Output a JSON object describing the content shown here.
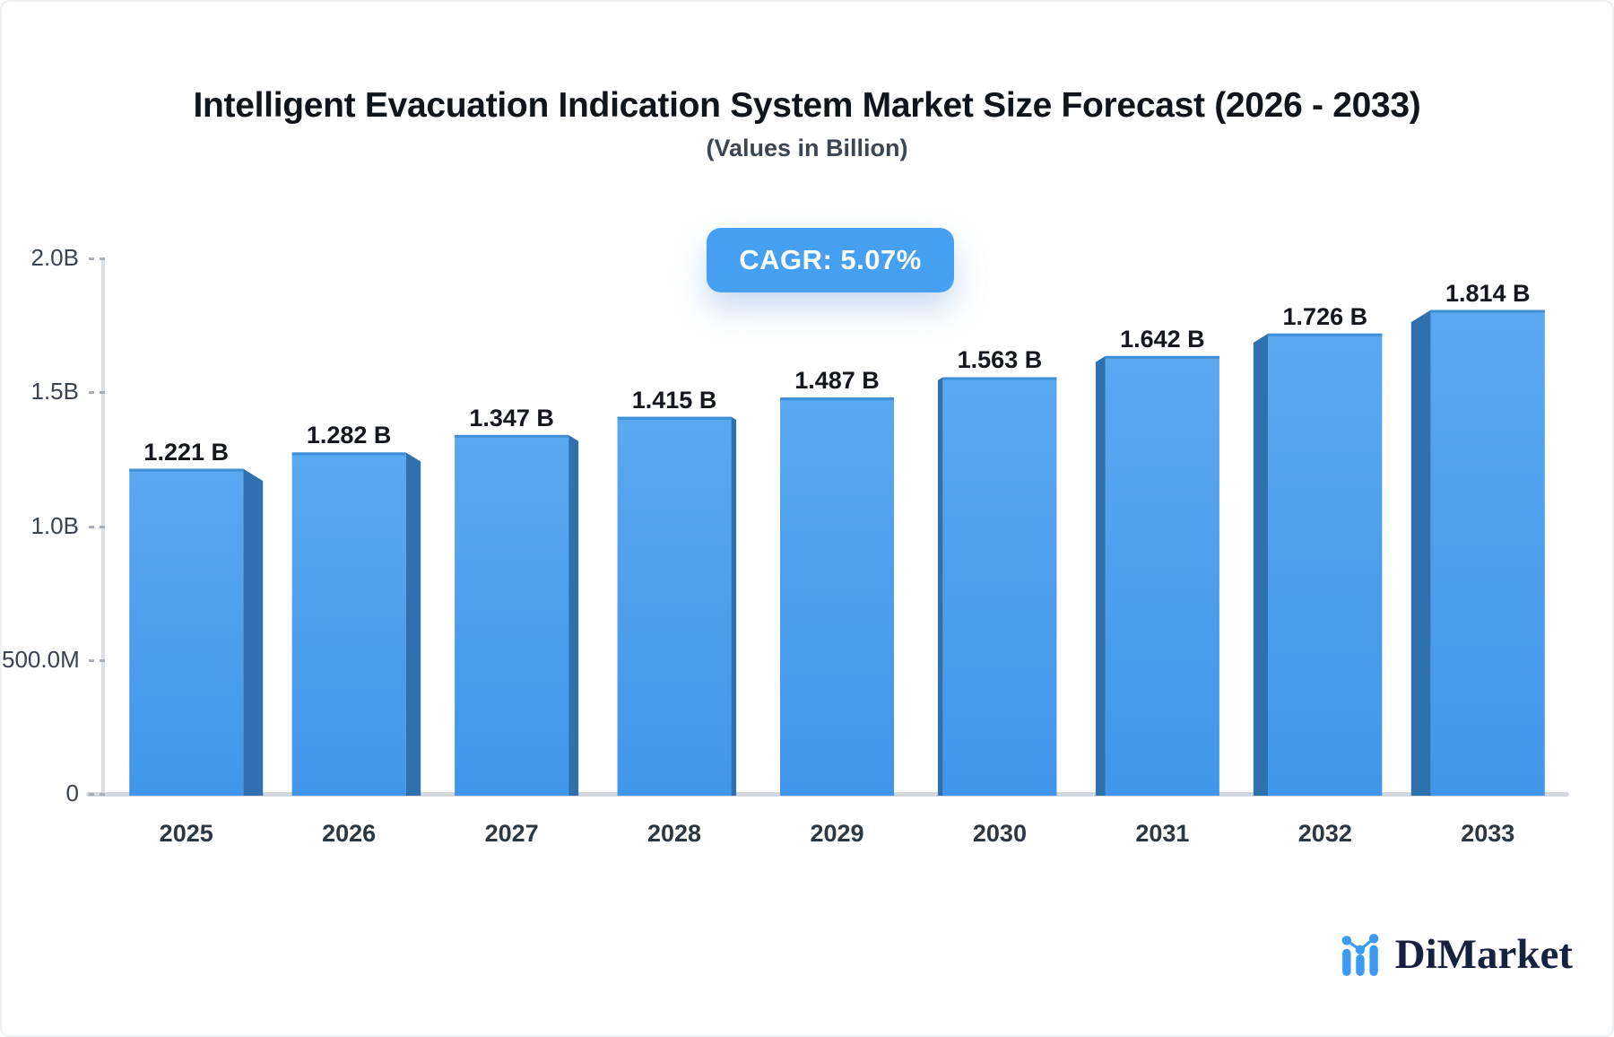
{
  "page": {
    "title": "Intelligent Evacuation Indication System Market Size Forecast (2026 - 2033)",
    "subtitle": "(Values in Billion)"
  },
  "badge": {
    "label": "CAGR: 5.07%"
  },
  "brand": {
    "name": "DiMarket"
  },
  "chart_data": {
    "type": "bar",
    "title": "Intelligent Evacuation Indication System Market Size Forecast (2026 - 2033)",
    "subtitle": "(Values in Billion)",
    "cagr_percent": 5.07,
    "categories": [
      "2025",
      "2026",
      "2027",
      "2028",
      "2029",
      "2030",
      "2031",
      "2032",
      "2033"
    ],
    "values": [
      1.221,
      1.282,
      1.347,
      1.415,
      1.487,
      1.563,
      1.642,
      1.726,
      1.814
    ],
    "value_labels": [
      "1.221 B",
      "1.282 B",
      "1.347 B",
      "1.415 B",
      "1.487 B",
      "1.563 B",
      "1.642 B",
      "1.726 B",
      "1.814 B"
    ],
    "xlabel": "",
    "ylabel": "",
    "ylim": [
      0,
      2.0
    ],
    "ytick_values": [
      0,
      0.5,
      1.0,
      1.5,
      2.0
    ],
    "ytick_labels": [
      "0",
      "500.0M",
      "1.0B",
      "1.5B",
      "2.0B"
    ],
    "grid": false,
    "legend": "none",
    "bar_style": "3d-extruded-perspective"
  },
  "colors": {
    "bar_face_top": "#5aa8f0",
    "bar_face_bottom": "#4096ea",
    "bar_side": "#2e71ae",
    "bar_top_edge": "#3f8fd9",
    "badge_bg": "#46a0f1",
    "badge_text": "#ffffff",
    "axis_line": "#dcdfe4",
    "baseline": "#d3d7dd",
    "tick_label": "#39424e",
    "x_label": "#2c3744",
    "value_label": "#14171d",
    "title": "#10151b",
    "subtitle": "#3c4552",
    "brand_text": "#15223f",
    "brand_icon": "#3b9bf2"
  }
}
